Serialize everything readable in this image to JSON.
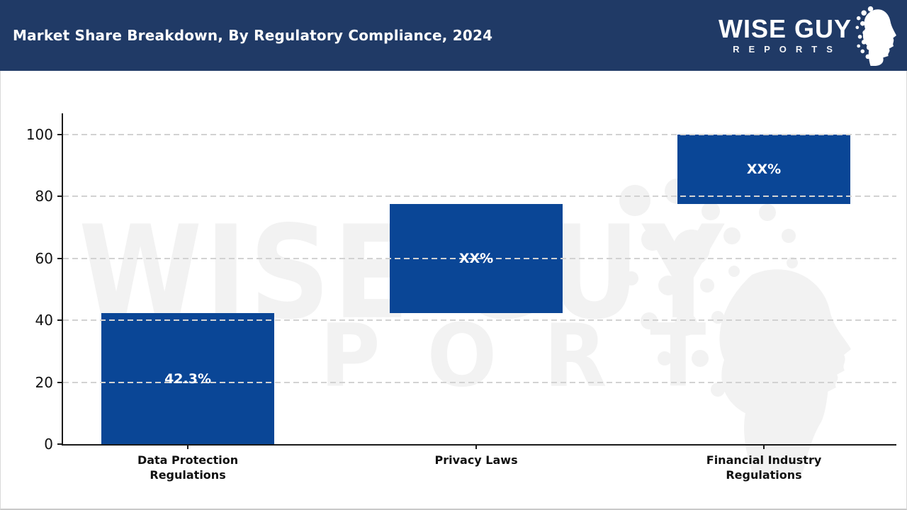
{
  "header": {
    "title": "Market Share Breakdown, By Regulatory Compliance, 2024",
    "logo": {
      "line1": "WISE GUY",
      "line2": "REPORTS"
    }
  },
  "watermark": {
    "line1": "WISE GUY",
    "line2": "REPORTS"
  },
  "chart_data": {
    "type": "bar",
    "subtype": "waterfall",
    "title": "Market Share Breakdown, By Regulatory Compliance, 2024",
    "categories": [
      "Data Protection Regulations",
      "Privacy Laws",
      "Financial Industry Regulations"
    ],
    "category_lines": [
      [
        "Data Protection",
        "Regulations"
      ],
      [
        "Privacy Laws"
      ],
      [
        "Financial Industry",
        "Regulations"
      ]
    ],
    "bars": [
      {
        "category": "Data Protection Regulations",
        "start": 0,
        "end": 42.3,
        "label": "42.3%"
      },
      {
        "category": "Privacy Laws",
        "start": 42.3,
        "end": 77.5,
        "label": "XX%"
      },
      {
        "category": "Financial Industry Regulations",
        "start": 77.5,
        "end": 100,
        "label": "XX%"
      }
    ],
    "xlabel": "",
    "ylabel": "",
    "ylim": [
      0,
      100
    ],
    "yticks": [
      0,
      20,
      40,
      60,
      80,
      100
    ],
    "grid": {
      "axis": "y",
      "style": "dashed",
      "over_bars": true
    },
    "legend": null,
    "colors": {
      "bar": "#0a4696",
      "grid": "#d2d2d2",
      "axis": "#1a1a1a",
      "bar_label": "#ffffff",
      "header_bg": "#203a66",
      "watermark": "#f2f2f2"
    }
  }
}
